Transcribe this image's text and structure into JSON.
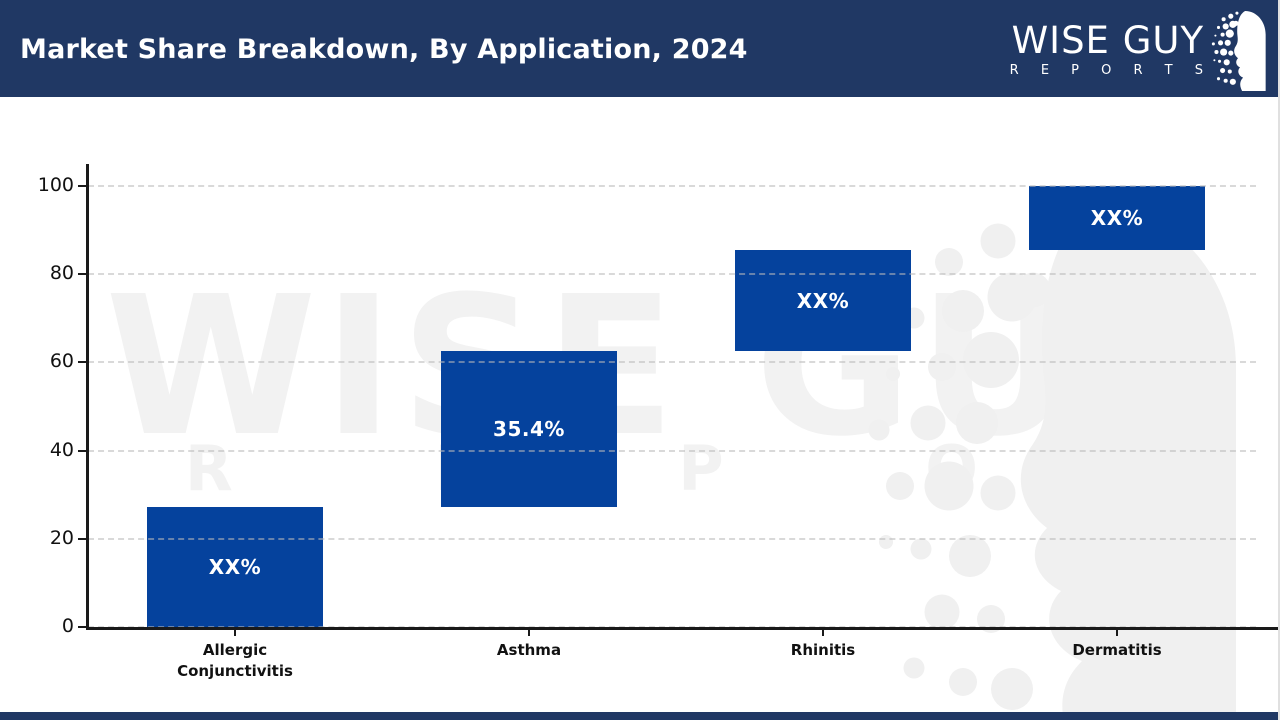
{
  "header": {
    "title": "Market Share Breakdown, By Application, 2024",
    "logo": {
      "line1": "WISE GUY",
      "line2": "R E P O R T S"
    }
  },
  "watermark": {
    "line1": "WISE GUY",
    "line2": "R E P O R T S"
  },
  "chart_data": {
    "type": "bar",
    "variant": "floating-segment (waterfall-style market share breakdown)",
    "title": "Market Share Breakdown, By Application, 2024",
    "categories": [
      "Allergic Conjunctivitis",
      "Asthma",
      "Rhinitis",
      "Dermatitis"
    ],
    "segments": [
      {
        "category": "Allergic Conjunctivitis",
        "start": 0,
        "end": 27.2,
        "label": "XX%"
      },
      {
        "category": "Asthma",
        "start": 27.2,
        "end": 62.6,
        "label": "35.4%"
      },
      {
        "category": "Rhinitis",
        "start": 62.6,
        "end": 85.4,
        "label": "XX%"
      },
      {
        "category": "Dermatitis",
        "start": 85.5,
        "end": 100,
        "label": "XX%"
      }
    ],
    "xlabel": "",
    "ylabel": "",
    "yticks": [
      0,
      20,
      40,
      60,
      80,
      100
    ],
    "ylim": [
      0,
      105
    ],
    "grid": {
      "horizontal": true,
      "style": "dashed",
      "drawn_over_bars": true
    },
    "legend": "none",
    "bar_color": "#05429d",
    "bar_label_color": "#ffffff"
  },
  "colors": {
    "header_bg": "#203864",
    "footer_bg": "#203864",
    "bar": "#05429d",
    "axis": "#1a1a1a",
    "grid": "#bcbcbc",
    "watermark": "#f2f2f2",
    "title_text": "#ffffff"
  }
}
